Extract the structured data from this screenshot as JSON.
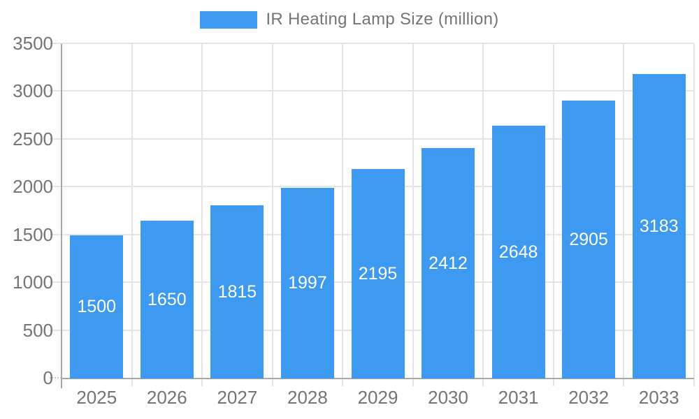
{
  "chart_data": {
    "type": "bar",
    "title": "IR Heating Lamp Size (million)",
    "categories": [
      "2025",
      "2026",
      "2027",
      "2028",
      "2029",
      "2030",
      "2031",
      "2032",
      "2033"
    ],
    "values": [
      1500,
      1650,
      1815,
      1997,
      2195,
      2412,
      2648,
      2905,
      3183
    ],
    "xlabel": "",
    "ylabel": "",
    "ylim": [
      0,
      3500
    ],
    "yticks": [
      0,
      500,
      1000,
      1500,
      2000,
      2500,
      3000,
      3500
    ],
    "grid": true,
    "legend_position": "top-center",
    "bar_label_position": "inside-center",
    "colors": {
      "bar": "#3D9AF0",
      "bar_label": "#FFFFFF",
      "axis_text": "#757575",
      "grid_line": "#E4E4E4",
      "axis_line": "#A8A8A8",
      "zero_tick": "#CCCCCC",
      "background": "#FFFFFF"
    }
  }
}
